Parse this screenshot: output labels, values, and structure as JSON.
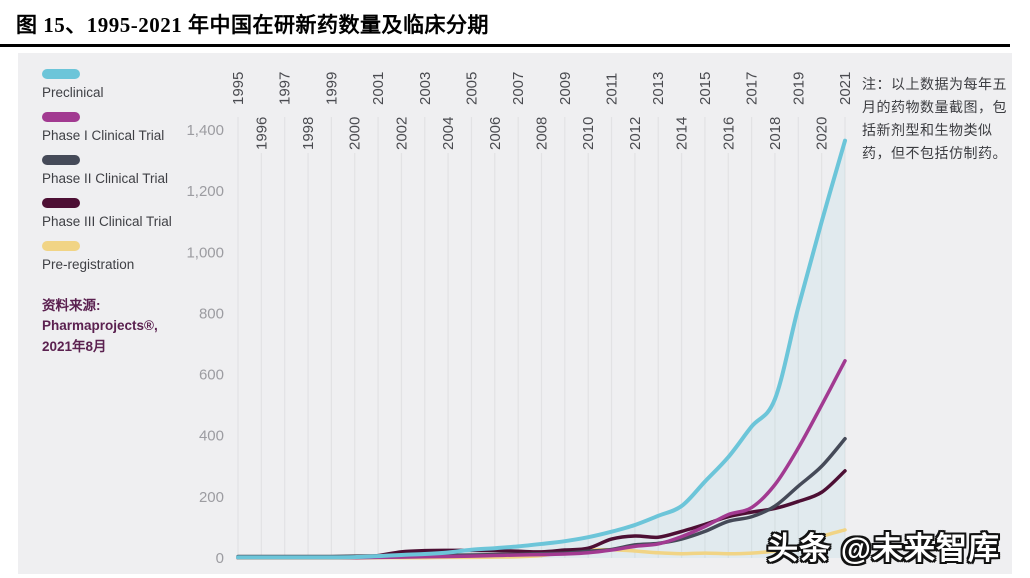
{
  "figure": {
    "title": "图 15、1995-2021 年中国在研新药数量及临床分期"
  },
  "source_note": "资料来源:\nPharmaprojects®,\n2021年8月",
  "side_note": "注：以上数据为每年五月的药物数量截图，包括新剂型和生物类似药，但不包括仿制药。",
  "watermark": "头条 @未来智库",
  "colors": {
    "panel_background": "#efeff1",
    "gridline": "#e2e2e4",
    "x_label": "#4a4b50",
    "y_label": "#9c9ca1",
    "preclinical": "#6cc5d9",
    "phase1": "#a23a91",
    "phase2": "#454a58",
    "phase3": "#4d0f34",
    "preregistration": "#f1d485"
  },
  "legend": {
    "items": [
      {
        "label": "Preclinical",
        "color": "#6cc5d9"
      },
      {
        "label": "Phase I Clinical Trial",
        "color": "#a23a91"
      },
      {
        "label": "Phase II Clinical Trial",
        "color": "#454a58"
      },
      {
        "label": "Phase III Clinical Trial",
        "color": "#4d0f34"
      },
      {
        "label": "Pre-registration",
        "color": "#f1d485"
      }
    ]
  },
  "chart_data": {
    "type": "line",
    "title": "1995-2021 年中国在研新药数量及临床分期",
    "xlabel": "",
    "ylabel": "",
    "ylim": [
      0,
      1400
    ],
    "y_tick_labels": [
      "0",
      "200",
      "400",
      "600",
      "800",
      "1,000",
      "1,200",
      "1,400"
    ],
    "y_tick_values": [
      0,
      200,
      400,
      600,
      800,
      1000,
      1200,
      1400
    ],
    "grid": "vertical-only",
    "legend_position": "left",
    "x": [
      1995,
      1996,
      1997,
      1998,
      1999,
      2000,
      2001,
      2002,
      2003,
      2004,
      2005,
      2006,
      2007,
      2008,
      2009,
      2010,
      2011,
      2012,
      2013,
      2014,
      2015,
      2016,
      2017,
      2018,
      2019,
      2020,
      2021
    ],
    "x_tick_labels": [
      "1995",
      "1996",
      "1997",
      "1998",
      "1999",
      "2000",
      "2001",
      "2002",
      "2003",
      "2004",
      "2005",
      "2006",
      "2007",
      "2008",
      "2009",
      "2010",
      "2011",
      "2012",
      "2013",
      "2014",
      "2015",
      "2016",
      "2017",
      "2018",
      "2019",
      "2020",
      "2021"
    ],
    "series": [
      {
        "name": "Preclinical",
        "color": "#6cc5d9",
        "fill_under": true,
        "values": [
          2,
          2,
          2,
          2,
          2,
          3,
          6,
          10,
          13,
          18,
          27,
          32,
          38,
          46,
          55,
          68,
          86,
          108,
          138,
          170,
          250,
          330,
          430,
          520,
          820,
          1100,
          1365
        ]
      },
      {
        "name": "Phase I Clinical Trial",
        "color": "#a23a91",
        "values": [
          1,
          1,
          1,
          1,
          1,
          1,
          2,
          3,
          4,
          5,
          6,
          8,
          10,
          11,
          13,
          17,
          26,
          38,
          46,
          70,
          103,
          142,
          165,
          240,
          360,
          500,
          645
        ]
      },
      {
        "name": "Phase II Clinical Trial",
        "color": "#454a58",
        "values": [
          5,
          5,
          5,
          5,
          5,
          6,
          7,
          8,
          8,
          9,
          10,
          11,
          12,
          14,
          16,
          22,
          28,
          43,
          48,
          62,
          87,
          120,
          135,
          170,
          235,
          300,
          390
        ]
      },
      {
        "name": "Phase III Clinical Trial",
        "color": "#4d0f34",
        "values": [
          1,
          1,
          1,
          1,
          1,
          2,
          8,
          20,
          24,
          25,
          25,
          24,
          22,
          20,
          26,
          32,
          62,
          72,
          68,
          87,
          110,
          135,
          150,
          162,
          185,
          215,
          285
        ]
      },
      {
        "name": "Pre-registration",
        "color": "#f1d485",
        "values": [
          0,
          0,
          0,
          0,
          0,
          0,
          1,
          1,
          1,
          2,
          2,
          3,
          4,
          8,
          20,
          26,
          27,
          23,
          17,
          14,
          16,
          14,
          16,
          23,
          36,
          70,
          92
        ]
      }
    ]
  }
}
